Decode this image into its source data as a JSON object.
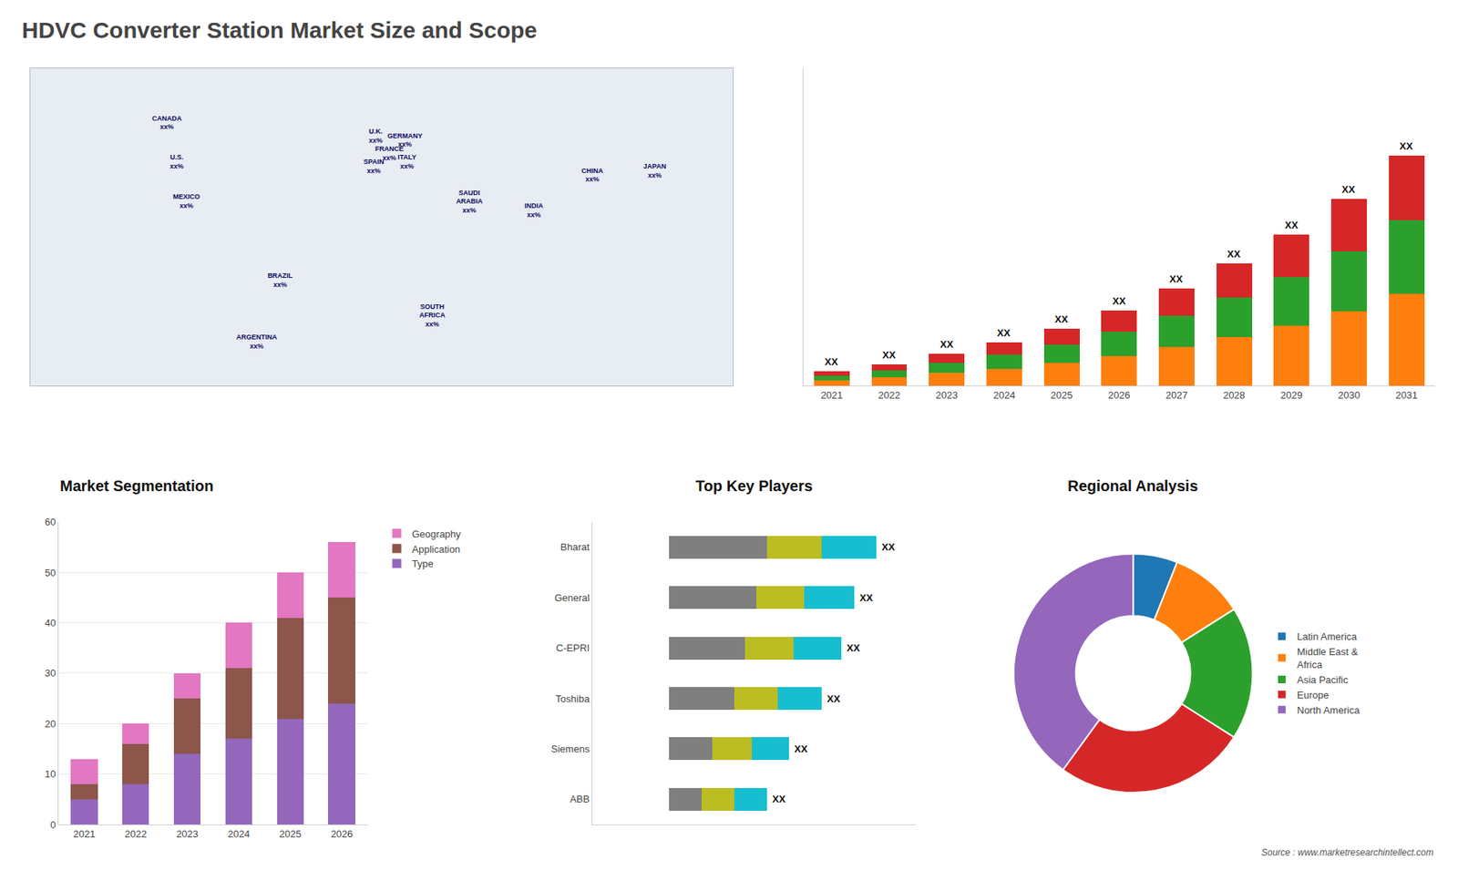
{
  "title": "HDVC Converter Station Market Size and Scope",
  "annotations": [
    {
      "text": "Source : www.marketresearchintellect.com"
    }
  ],
  "chart_data": [
    {
      "type": "text",
      "labels": [
        "CANADA\nxx%",
        "U.S.\nxx%",
        "MEXICO\nxx%",
        "BRAZIL\nxx%",
        "ARGENTINA\nxx%",
        "U.K.\nxx%",
        "FRANCE\nxx%",
        "SPAIN\nxx%",
        "GERMANY\nxx%",
        "ITALY\nxx%",
        "SAUDI\nARABIA\nxx%",
        "SOUTH\nAFRICA\nxx%",
        "INDIA\nxx%",
        "CHINA\nxx%",
        "JAPAN\nxx%"
      ],
      "x": [
        -110,
        -105,
        -100,
        -52,
        -64,
        -3,
        4,
        -4,
        12,
        13,
        45,
        26,
        78,
        108,
        140
      ],
      "y": [
        60,
        42,
        24,
        -12,
        -40,
        54,
        46,
        40,
        52,
        42,
        24,
        -28,
        20,
        36,
        38
      ],
      "xlim": [
        -180,
        180
      ],
      "ylim": [
        -60,
        85
      ],
      "tick_labels": false,
      "grid": false
    },
    {
      "type": "bar",
      "stacked": true,
      "categories": [
        "2021",
        "2022",
        "2023",
        "2024",
        "2025",
        "2026",
        "2027",
        "2028",
        "2029",
        "2030",
        "2031"
      ],
      "series": [
        {
          "values": [
            0.8,
            1.2,
            1.8,
            2.4,
            3.2,
            4.2,
            5.4,
            6.8,
            8.4,
            10.4,
            12.8
          ]
        },
        {
          "values": [
            0.64,
            0.96,
            1.44,
            1.92,
            2.56,
            3.36,
            4.32,
            5.44,
            6.72,
            8.32,
            10.24
          ]
        },
        {
          "values": [
            0.56,
            0.84,
            1.26,
            1.68,
            2.24,
            2.94,
            3.78,
            4.76,
            5.88,
            7.28,
            8.96
          ]
        }
      ],
      "annotations": [
        {
          "category": "2021",
          "text": "XX"
        },
        {
          "category": "2022",
          "text": "XX"
        },
        {
          "category": "2023",
          "text": "XX"
        },
        {
          "category": "2024",
          "text": "XX"
        },
        {
          "category": "2025",
          "text": "XX"
        },
        {
          "category": "2026",
          "text": "XX"
        },
        {
          "category": "2027",
          "text": "XX"
        },
        {
          "category": "2028",
          "text": "XX"
        },
        {
          "category": "2029",
          "text": "XX"
        },
        {
          "category": "2030",
          "text": "XX"
        },
        {
          "category": "2031",
          "text": "XX"
        }
      ],
      "ylim": [
        0,
        44.16
      ],
      "tick_labels": "x",
      "grid": false
    },
    {
      "type": "bar",
      "title": "Market Segmentation",
      "stacked": true,
      "categories": [
        "2021",
        "2022",
        "2023",
        "2024",
        "2025",
        "2026"
      ],
      "series": [
        {
          "name": "Type",
          "values": [
            5,
            8,
            14,
            17,
            21,
            24
          ]
        },
        {
          "name": "Application",
          "values": [
            3,
            8,
            11,
            14,
            20,
            21
          ]
        },
        {
          "name": "Geography",
          "values": [
            5,
            4,
            5,
            9,
            9,
            11
          ]
        }
      ],
      "ylim": [
        0,
        60
      ],
      "yticks": [
        0,
        10,
        20,
        30,
        40,
        50,
        60
      ],
      "grid": true,
      "legend": "upper right"
    },
    {
      "type": "bar",
      "title": "Top Key Players",
      "orientation": "horizontal",
      "stacked": true,
      "categories": [
        "Bharat",
        "General",
        "C-EPRI",
        "Toshiba",
        "Siemens",
        "ABB"
      ],
      "series": [
        {
          "values": [
            4.5,
            4.0,
            3.5,
            3.0,
            2.0,
            1.5
          ]
        },
        {
          "values": [
            2.5,
            2.2,
            2.2,
            2.0,
            1.8,
            1.5
          ]
        },
        {
          "values": [
            2.5,
            2.3,
            2.2,
            2.0,
            1.7,
            1.5
          ]
        }
      ],
      "annotations": [
        {
          "category": "Bharat",
          "text": "XX"
        },
        {
          "category": "General",
          "text": "XX"
        },
        {
          "category": "C-EPRI",
          "text": "XX"
        },
        {
          "category": "Toshiba",
          "text": "XX"
        },
        {
          "category": "Siemens",
          "text": "XX"
        },
        {
          "category": "ABB",
          "text": "XX"
        }
      ],
      "xlim": [
        -3.5,
        11.3
      ],
      "tick_labels": "y",
      "grid": false
    },
    {
      "type": "pie",
      "title": "Regional Analysis",
      "categories": [
        "Latin America",
        "Middle East &\nAfrica",
        "Asia Pacific",
        "Europe",
        "North America"
      ],
      "values": [
        6,
        10,
        18,
        26,
        40
      ],
      "legend": "right",
      "data_labels": false
    }
  ]
}
